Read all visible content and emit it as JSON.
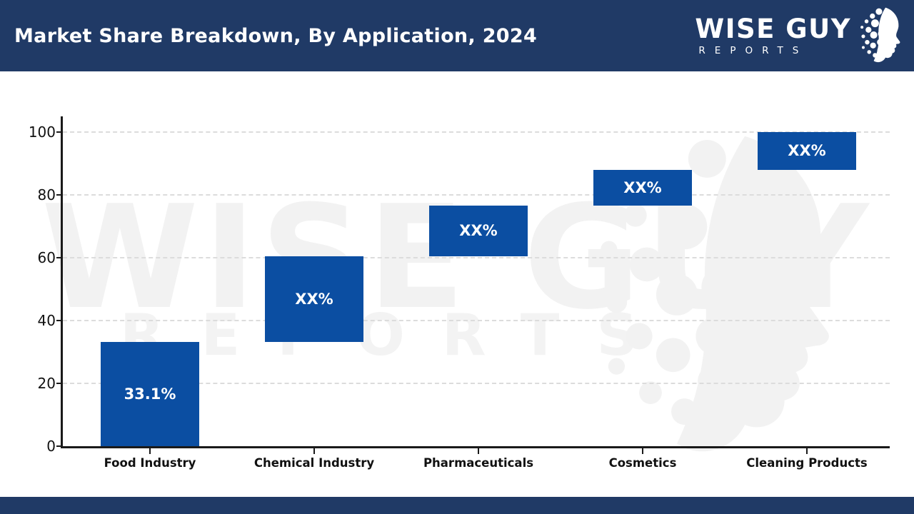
{
  "header": {
    "title": "Market Share Breakdown, By Application, 2024",
    "bg_color": "#203A66",
    "logo": {
      "line1": "WISE GUY",
      "line2": "REPORTS"
    }
  },
  "watermark": {
    "line1": "WISE GUY",
    "line2": "REPORTS"
  },
  "footer": {
    "bg_color": "#203A66"
  },
  "chart_data": {
    "type": "bar",
    "subtype": "waterfall",
    "title": "Market Share Breakdown, By Application, 2024",
    "categories": [
      "Food Industry",
      "Chemical Industry",
      "Pharmaceuticals",
      "Cosmetics",
      "Cleaning Products"
    ],
    "segments": [
      {
        "category": "Food Industry",
        "start": 0,
        "end": 33.1,
        "size": 33.1,
        "label": "33.1%"
      },
      {
        "category": "Chemical Industry",
        "start": 33.1,
        "end": 60.5,
        "size": 27.4,
        "label": "XX%"
      },
      {
        "category": "Pharmaceuticals",
        "start": 60.5,
        "end": 76.6,
        "size": 16.1,
        "label": "XX%"
      },
      {
        "category": "Cosmetics",
        "start": 76.6,
        "end": 88.0,
        "size": 11.4,
        "label": "XX%"
      },
      {
        "category": "Cleaning Products",
        "start": 88.0,
        "end": 100.0,
        "size": 12.0,
        "label": "XX%"
      }
    ],
    "yticks": [
      0,
      20,
      40,
      60,
      80,
      100
    ],
    "ylim": [
      0,
      105
    ],
    "xlabel": "",
    "ylabel": "",
    "grid": "horizontal-dashed",
    "legend": "none",
    "bar_color": "#0B4EA2",
    "bar_label_color": "#FFFFFF",
    "axis_color": "#1A1A1A",
    "gridline_color": "#DCDCDC"
  }
}
